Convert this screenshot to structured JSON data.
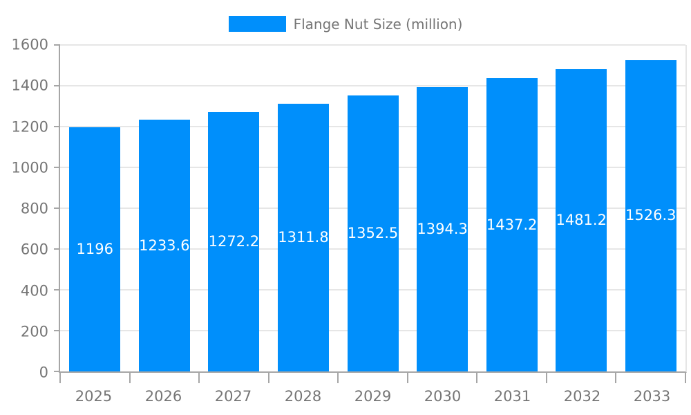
{
  "chart_data": {
    "type": "bar",
    "title": "",
    "legend": {
      "label": "Flange Nut Size (million)",
      "position": "top"
    },
    "categories": [
      "2025",
      "2026",
      "2027",
      "2028",
      "2029",
      "2030",
      "2031",
      "2032",
      "2033"
    ],
    "series": [
      {
        "name": "Flange Nut Size (million)",
        "values": [
          1196,
          1233.6,
          1272.2,
          1311.8,
          1352.5,
          1394.3,
          1437.2,
          1481.2,
          1526.3
        ]
      }
    ],
    "value_labels": [
      "1196",
      "1233.6",
      "1272.2",
      "1311.8",
      "1352.5",
      "1394.3",
      "1437.2",
      "1481.2",
      "1526.3"
    ],
    "xlabel": "",
    "ylabel": "",
    "ylim": [
      0,
      1600
    ],
    "y_ticks": [
      0,
      200,
      400,
      600,
      800,
      1000,
      1200,
      1400,
      1600
    ],
    "grid": true,
    "colors": {
      "bar": "#008FFB",
      "axis": "#a6a6a6",
      "gridline": "#e6e6e6",
      "tick_text": "#757575",
      "value_label_text": "#ffffff",
      "background": "#ffffff"
    }
  }
}
